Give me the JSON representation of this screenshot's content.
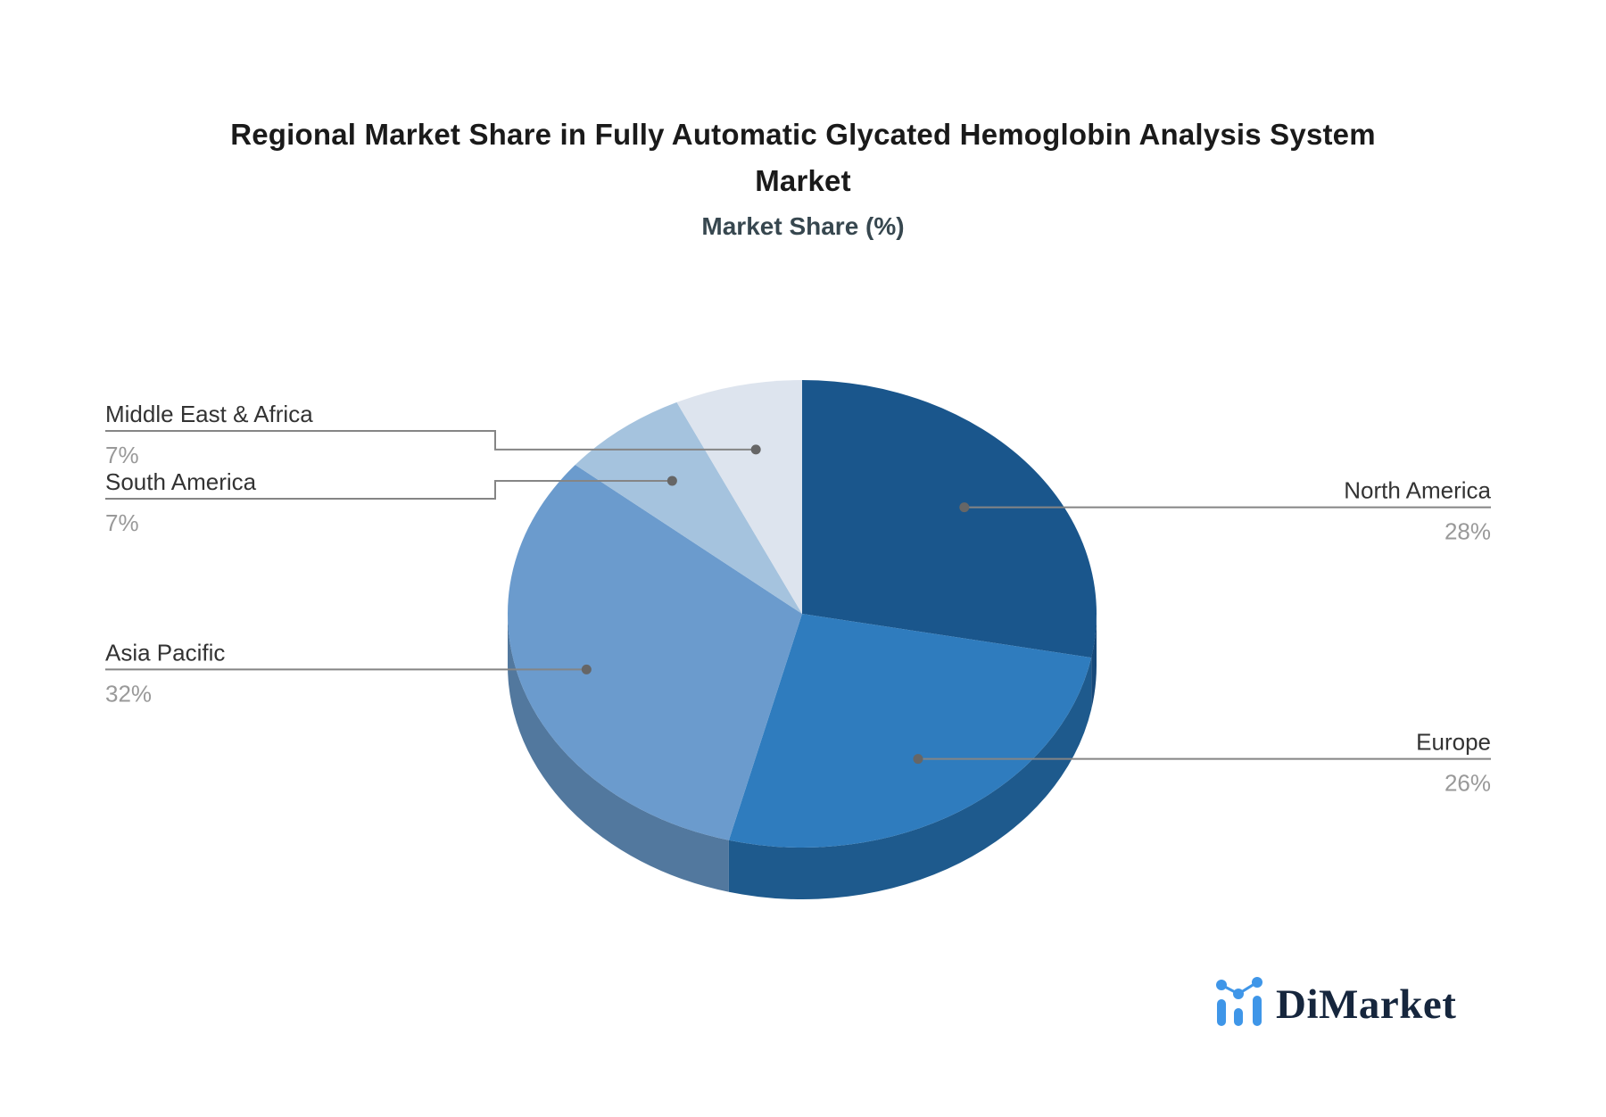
{
  "title": {
    "line1": "Regional Market Share in Fully Automatic Glycated Hemoglobin Analysis System",
    "line2": "Market"
  },
  "subtitle": "Market Share (%)",
  "chart_data": {
    "type": "pie",
    "title": "Regional Market Share in Fully Automatic Glycated Hemoglobin Analysis System Market",
    "subtitle": "Market Share (%)",
    "unit": "%",
    "start_angle_deg": 0,
    "direction": "clockwise",
    "style": "3d-pie",
    "legend_position": "callout-labels",
    "slices": [
      {
        "label": "North America",
        "value": 28,
        "display": "28%",
        "color": "#1A568C",
        "side_color": "#17497A"
      },
      {
        "label": "Europe",
        "value": 26,
        "display": "26%",
        "color": "#2F7CBE",
        "side_color": "#1E5A8D"
      },
      {
        "label": "Asia Pacific",
        "value": 32,
        "display": "32%",
        "color": "#6B9BCD",
        "side_color": "#52789E"
      },
      {
        "label": "South America",
        "value": 7,
        "display": "7%",
        "color": "#A5C3DE",
        "side_color": "#7E9CB8"
      },
      {
        "label": "Middle East & Africa",
        "value": 7,
        "display": "7%",
        "color": "#DDE4EE",
        "side_color": "#B3BFD0"
      }
    ]
  },
  "colors": {
    "background": "#FFFFFF",
    "leader_line": "#858585",
    "dot": "#666666",
    "label_text": "#333333",
    "value_text": "#999999"
  },
  "logo": {
    "text": "DiMarket",
    "icon": "bar-line-chart-icon",
    "accent": "#3F96E8",
    "text_color": "#16263D"
  }
}
